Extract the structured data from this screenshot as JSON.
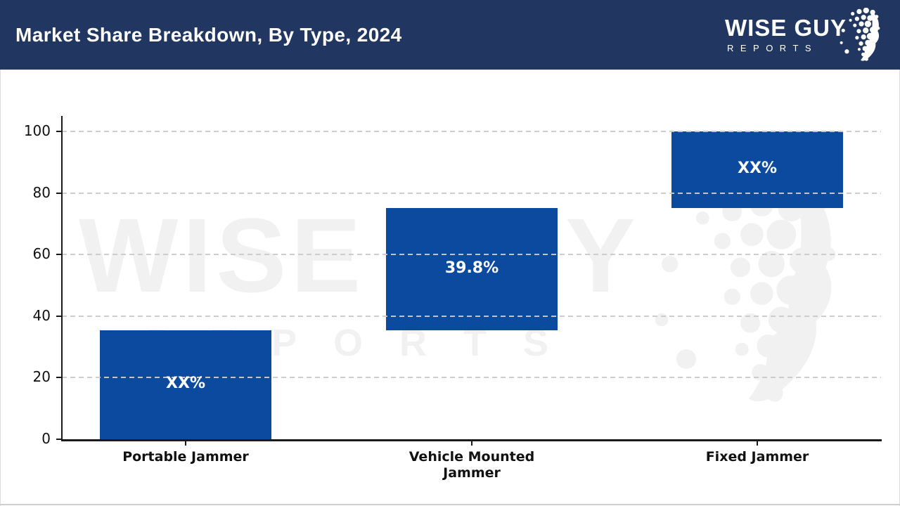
{
  "header": {
    "title": "Market Share Breakdown, By Type, 2024",
    "logo": {
      "wordmark": "WISE GUY",
      "reports": "REPORTS"
    }
  },
  "watermark": {
    "wordmark": "WISE GUY",
    "reports": "REPORTS"
  },
  "chart_data": {
    "type": "bar",
    "subtype": "floating-waterfall",
    "title": "Market Share Breakdown, By Type, 2024",
    "categories": [
      "Portable Jammer",
      "Vehicle Mounted Jammer",
      "Fixed Jammer"
    ],
    "series": [
      {
        "name": "Market Share",
        "segments": [
          {
            "category": "Portable Jammer",
            "start": 0,
            "end": 35.4,
            "label": "XX%"
          },
          {
            "category": "Vehicle Mounted Jammer",
            "start": 35.4,
            "end": 75.2,
            "label": "39.8%"
          },
          {
            "category": "Fixed Jammer",
            "start": 75.2,
            "end": 100,
            "label": "XX%"
          }
        ]
      }
    ],
    "ylim": [
      0,
      100
    ],
    "yticks": [
      0,
      20,
      40,
      60,
      80,
      100
    ],
    "xlabel": "",
    "ylabel": "",
    "grid": "horizontal-dashed",
    "legend": "none",
    "bar_color": "#0C4AA0",
    "value_label_color": "#ffffff",
    "header_color": "#213660",
    "gridline_color": "#cacaca",
    "axis_color": "#1a1a1a"
  }
}
